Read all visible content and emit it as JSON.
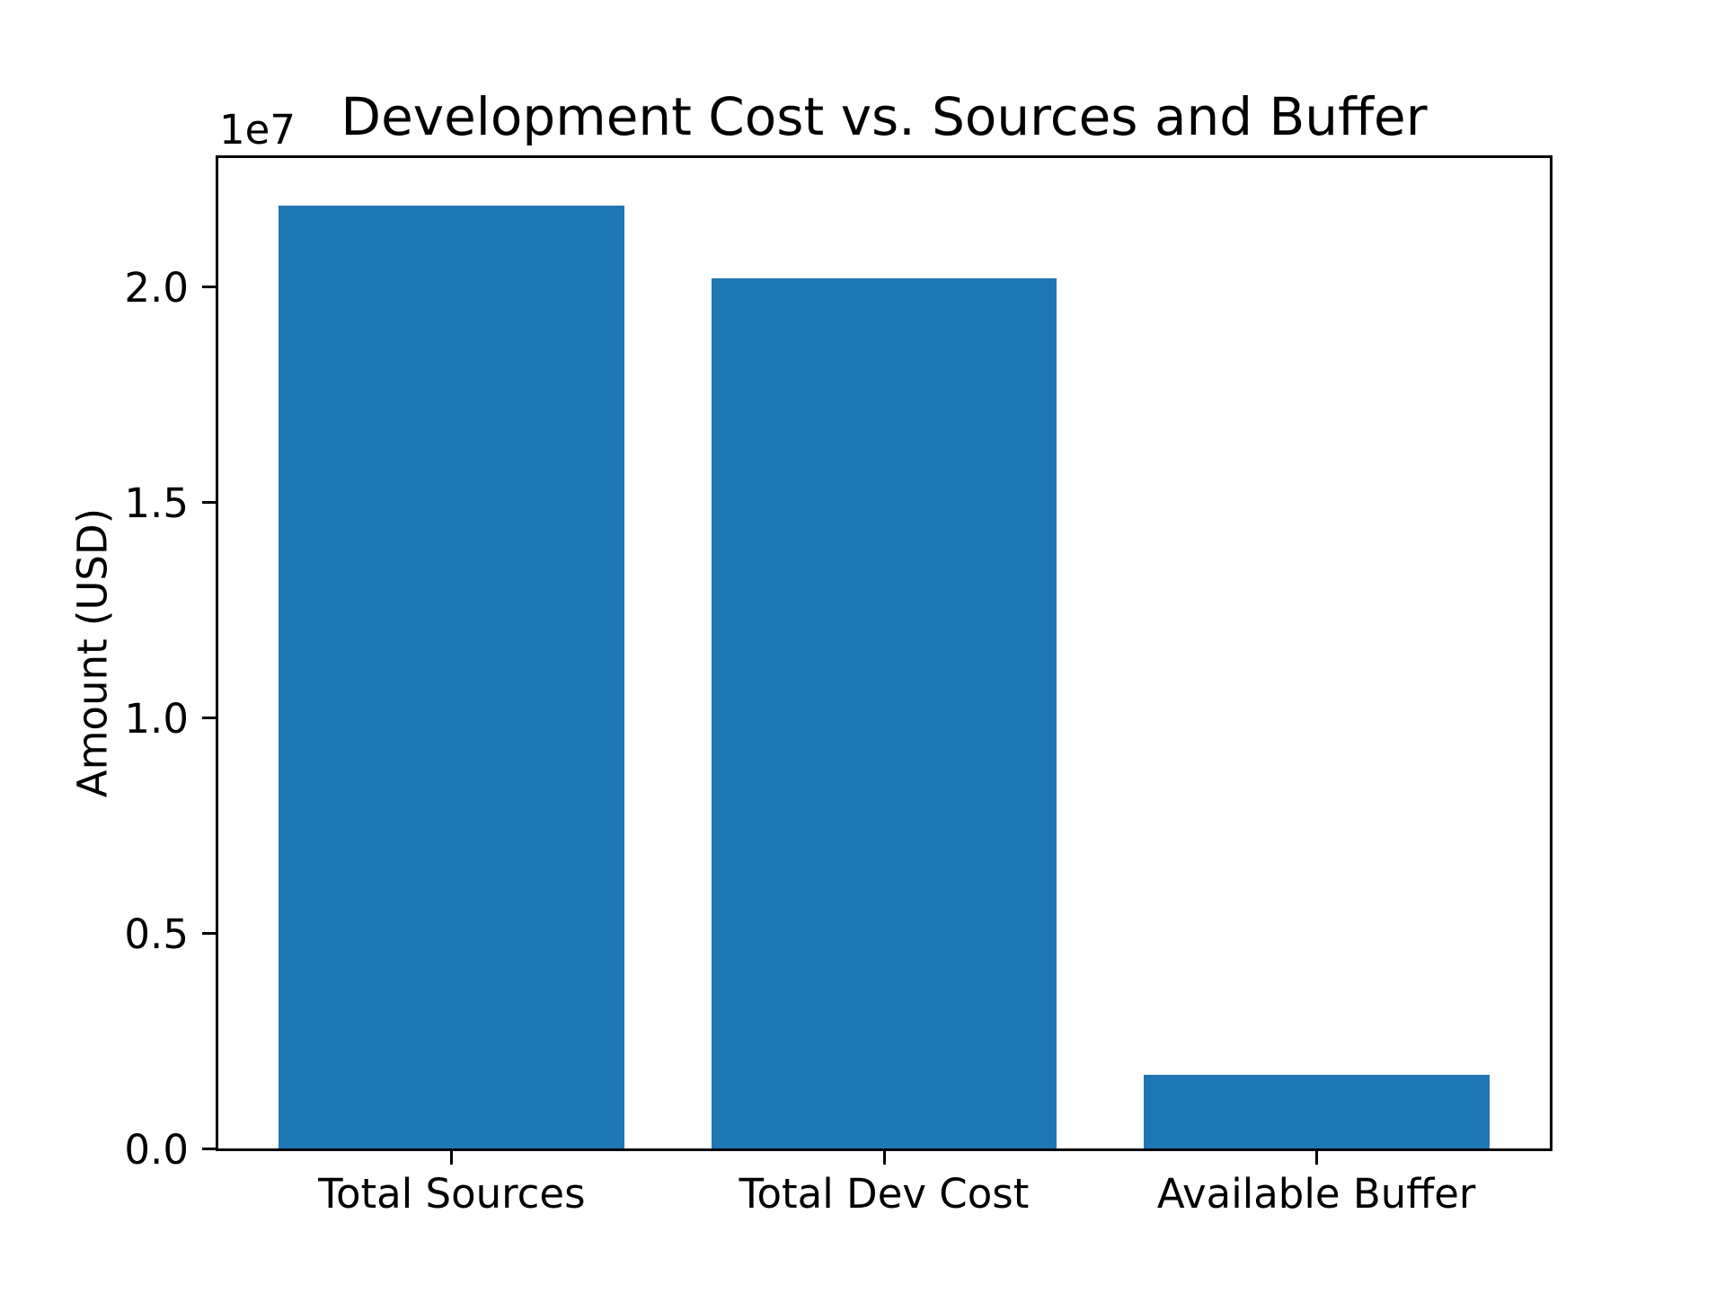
{
  "figure": {
    "title": "Development Cost vs. Sources and Buffer",
    "ylabel": "Amount (USD)",
    "offset_label": "1e7"
  },
  "chart_data": {
    "type": "bar",
    "title": "Development Cost vs. Sources and Buffer",
    "categories": [
      "Total Sources",
      "Total Dev Cost",
      "Available Buffer"
    ],
    "values": [
      21900000,
      20200000,
      1700000
    ],
    "xlabel": "",
    "ylabel": "Amount (USD)",
    "ylim": [
      0,
      23000000
    ],
    "xlim": [
      -0.54,
      2.54
    ],
    "bar_positions": [
      0,
      1,
      2
    ],
    "bar_width": 0.8,
    "bar_color": "#1f77b4",
    "axis_color": "#000000",
    "background_color": "#ffffff",
    "grid": false,
    "legend": null,
    "y_offset_text": "1e7",
    "yticks": [
      {
        "value": 0,
        "label": "0.0"
      },
      {
        "value": 5000000,
        "label": "0.5"
      },
      {
        "value": 10000000,
        "label": "1.0"
      },
      {
        "value": 15000000,
        "label": "1.5"
      },
      {
        "value": 20000000,
        "label": "2.0"
      }
    ]
  }
}
